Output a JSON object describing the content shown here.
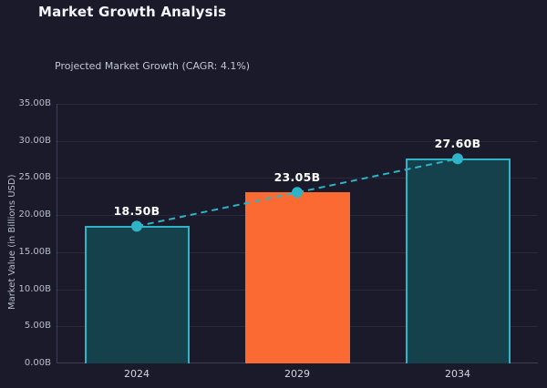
{
  "chart_data": {
    "type": "bar",
    "title": "Market Growth Analysis",
    "subtitle": "Projected Market Growth (CAGR: 4.1%)",
    "categories": [
      "2024",
      "2029",
      "2034"
    ],
    "values": [
      18.5,
      23.05,
      27.6
    ],
    "value_labels": [
      "18.50B",
      "23.05B",
      "27.60B"
    ],
    "bar_colors": [
      "teal",
      "orange",
      "teal"
    ],
    "xlabel": "",
    "ylabel": "Market Value (in Billions USD)",
    "ylim": [
      0,
      35
    ],
    "ytick_step": 5,
    "ytick_labels": [
      "0.00B",
      "5.00B",
      "10.00B",
      "15.00B",
      "20.00B",
      "25.00B",
      "30.00B",
      "35.00B"
    ],
    "grid": true,
    "legend": false,
    "trend_line": true,
    "colors": {
      "background": "#1a1a2b",
      "teal_fill": "#15414d",
      "teal_border": "#2fb3c7",
      "orange_fill": "#fc6a33",
      "line": "#2fb3c7",
      "marker": "#2fb3c7",
      "grid": "rgba(255,255,255,0.07)",
      "text": "#c3c7d1",
      "value_label": "#ffffff"
    }
  }
}
